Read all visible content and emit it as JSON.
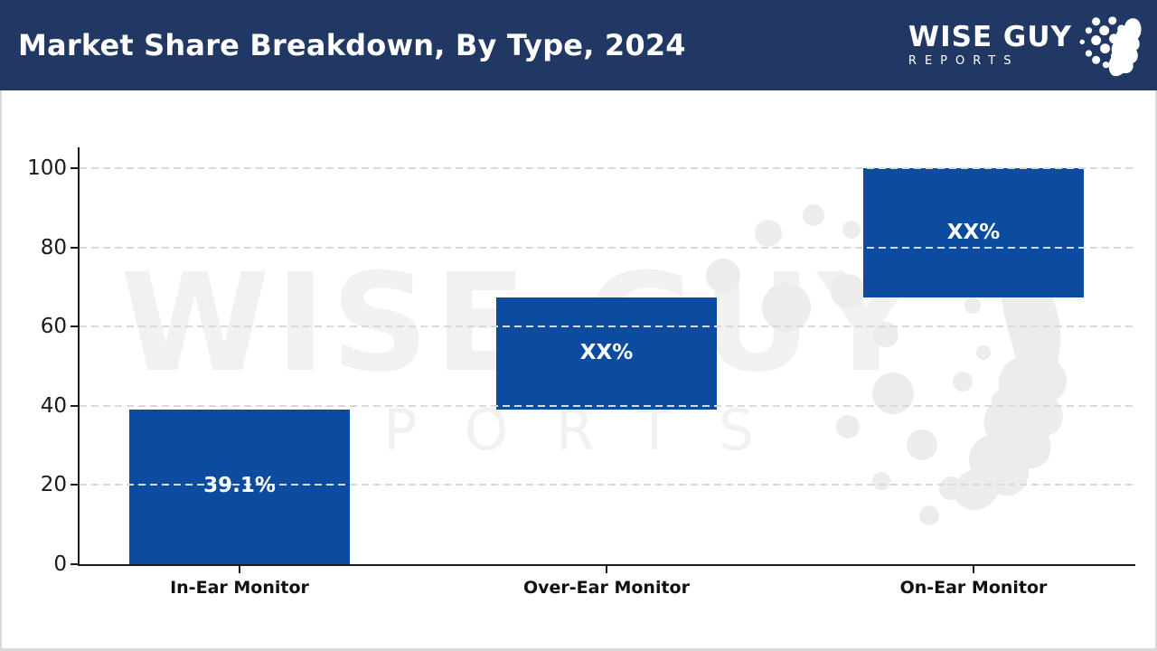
{
  "header": {
    "title": "Market Share Breakdown, By Type, 2024",
    "logo": {
      "line1": "WISE GUY",
      "line2": "REPORTS"
    }
  },
  "watermark": {
    "line1": "WISE GUY",
    "line2": "REPORTS"
  },
  "chart_data": {
    "type": "bar",
    "variant": "waterfall",
    "title": "Market Share Breakdown, By Type, 2024",
    "categories": [
      "In-Ear Monitor",
      "Over-Ear Monitor",
      "On-Ear Monitor"
    ],
    "series": [
      {
        "name": "Market Share",
        "segments": [
          {
            "category": "In-Ear Monitor",
            "start": 0,
            "end": 39.1,
            "value": 39.1,
            "label": "39.1%"
          },
          {
            "category": "Over-Ear Monitor",
            "start": 39.1,
            "end": 67.3,
            "value": 28.2,
            "label": "XX%"
          },
          {
            "category": "On-Ear Monitor",
            "start": 67.3,
            "end": 100,
            "value": 32.7,
            "label": "XX%"
          }
        ]
      }
    ],
    "xlabel": "",
    "ylabel": "",
    "yticks": [
      0,
      20,
      40,
      60,
      80,
      100
    ],
    "ylim": [
      0,
      105
    ],
    "grid": "horizontal-dashed",
    "legend": "none"
  },
  "colors": {
    "header_bg": "#213864",
    "bar": "#0b4ba0",
    "bar_label": "#ffffff",
    "grid": "#d9d9d9",
    "axis": "#1a1a1a",
    "watermark": "#f1f1f1",
    "border": "#d9d9d9"
  }
}
